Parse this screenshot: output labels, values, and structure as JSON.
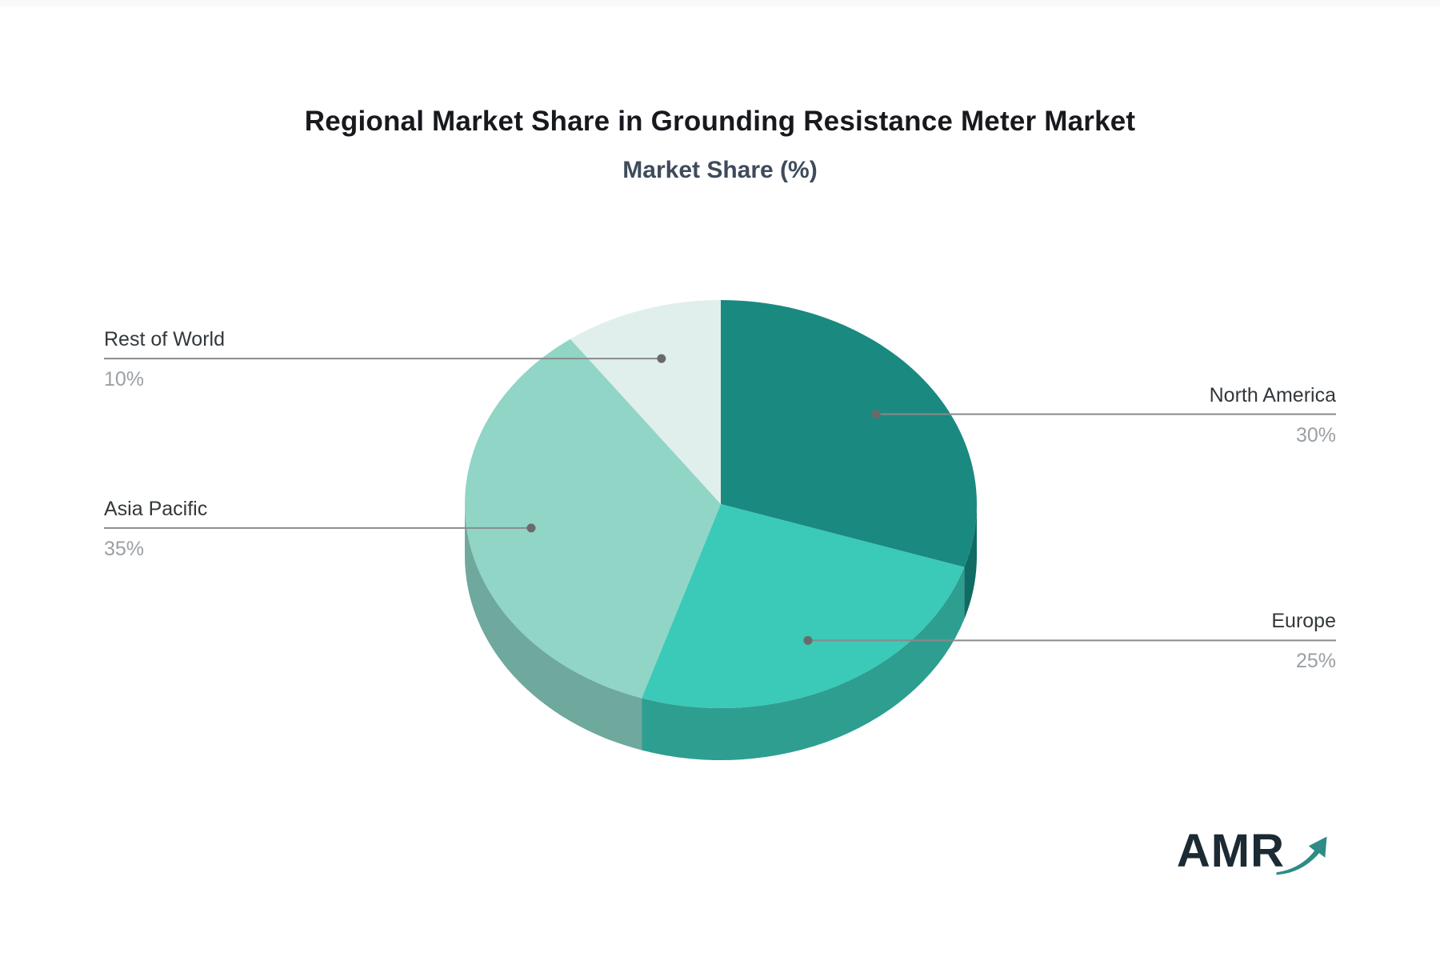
{
  "page": {
    "background": "#ffffff",
    "top_strip_color": "#f7f9fa"
  },
  "header": {
    "title": "Regional Market Share in Grounding Resistance Meter Market",
    "subtitle": "Market Share (%)"
  },
  "chart_data": {
    "type": "pie",
    "style": "3d-pie",
    "title": "Regional Market Share in Grounding Resistance Meter Market",
    "subtitle": "Market Share (%)",
    "unit": "%",
    "start_angle": "12 o'clock, clockwise",
    "slices": [
      {
        "label": "North America",
        "value": 30,
        "display_value": "30%",
        "color": "#1a8a80",
        "side_color": "#0f6b63",
        "callout_side": "right"
      },
      {
        "label": "Europe",
        "value": 25,
        "display_value": "25%",
        "color": "#3bc9b8",
        "side_color": "#2e9e91",
        "callout_side": "right"
      },
      {
        "label": "Asia Pacific",
        "value": 35,
        "display_value": "35%",
        "color": "#90d5c6",
        "side_color": "#6fa89c",
        "callout_side": "left"
      },
      {
        "label": "Rest of World",
        "value": 10,
        "display_value": "10%",
        "color": "#e0efeb",
        "side_color": "#b8cfc9",
        "callout_side": "left"
      }
    ],
    "legend_position": "leader-line callouts",
    "callout_line_color": "#8a8a8a",
    "callout_dot_color": "#6a6a6a",
    "label_color": "#33383c",
    "value_color": "#9aa0a5"
  },
  "logo": {
    "text": "AMR",
    "text_color": "#1b2a33",
    "arrow_color": "#2e8b85"
  }
}
